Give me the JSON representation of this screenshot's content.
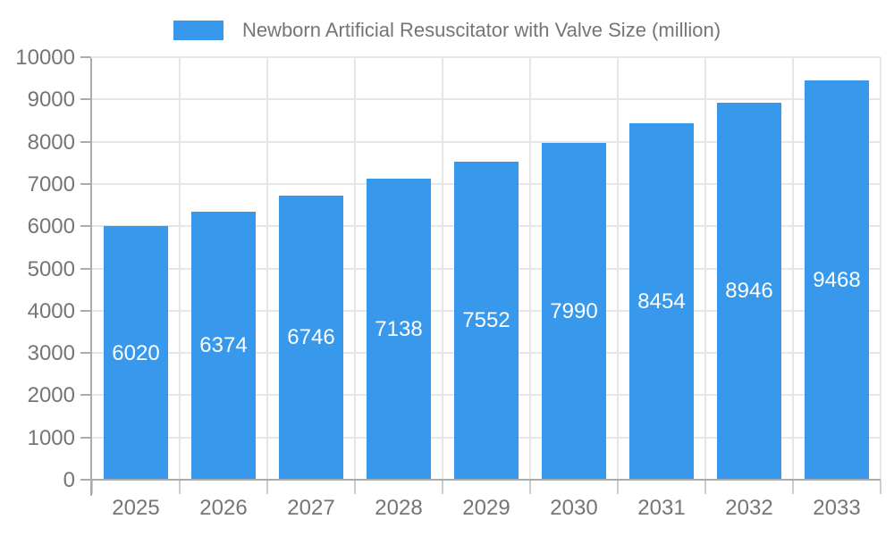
{
  "chart_data": {
    "type": "bar",
    "title": "Newborn Artificial Resuscitator with Valve Size (million)",
    "categories": [
      "2025",
      "2026",
      "2027",
      "2028",
      "2029",
      "2030",
      "2031",
      "2032",
      "2033"
    ],
    "series": [
      {
        "name": "Newborn Artificial Resuscitator with Valve Size (million)",
        "values": [
          6020,
          6374,
          6746,
          7138,
          7552,
          7990,
          8454,
          8946,
          9468
        ],
        "color": "#3899EC"
      }
    ],
    "xlabel": "",
    "ylabel": "",
    "ylim": [
      0,
      10000
    ],
    "yticks": [
      0,
      1000,
      2000,
      3000,
      4000,
      5000,
      6000,
      7000,
      8000,
      9000,
      10000
    ],
    "grid": true,
    "legend_position": "top",
    "bar_value_labels_visible": true
  },
  "colors": {
    "bar": "#3899EC",
    "grid": "#E6E6E6",
    "axis": "#ABABAB",
    "x_tick": "#CCCCCC",
    "axis_text": "#757575",
    "legend_text": "#757575",
    "bar_label_text": "#FFFFFF",
    "background": "#FFFFFF"
  }
}
